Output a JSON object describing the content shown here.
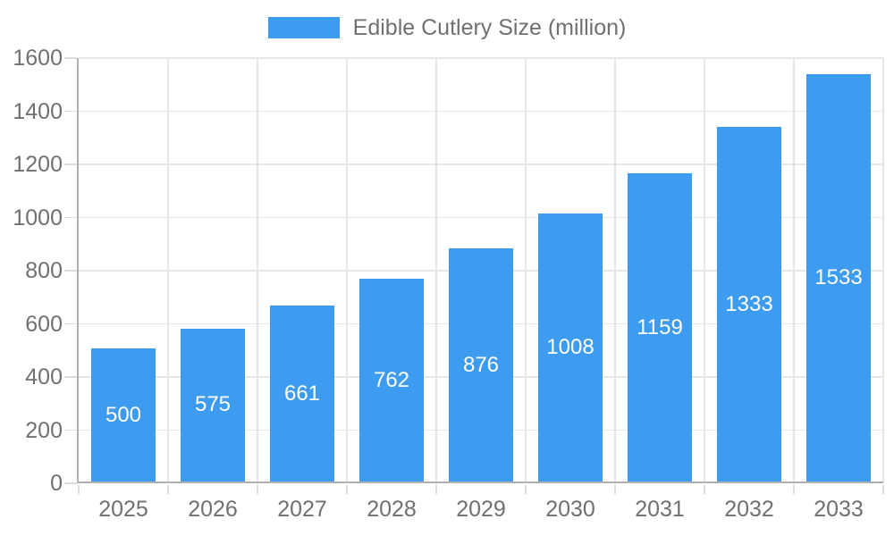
{
  "chart_data": {
    "type": "bar",
    "title": "Edible Cutlery Size (million)",
    "categories": [
      "2025",
      "2026",
      "2027",
      "2028",
      "2029",
      "2030",
      "2031",
      "2032",
      "2033"
    ],
    "values": [
      500,
      575,
      661,
      762,
      876,
      1008,
      1159,
      1333,
      1533
    ],
    "series_name": "Edible Cutlery Size (million)",
    "xlabel": "",
    "ylabel": "",
    "ylim": [
      0,
      1600
    ],
    "yticks": [
      0,
      200,
      400,
      600,
      800,
      1000,
      1200,
      1400,
      1600
    ],
    "grid": true,
    "legend_position": "top-center",
    "value_labels": "inside-center",
    "colors": {
      "bar": "#3D9CF0",
      "grid_line": "#E6E6E6",
      "axis_line": "#B0B0B0",
      "tick_line": "#DCDCDC",
      "axis_text": "#707070",
      "value_label_text": "#FFFFFF",
      "background": "#FFFFFF"
    }
  }
}
